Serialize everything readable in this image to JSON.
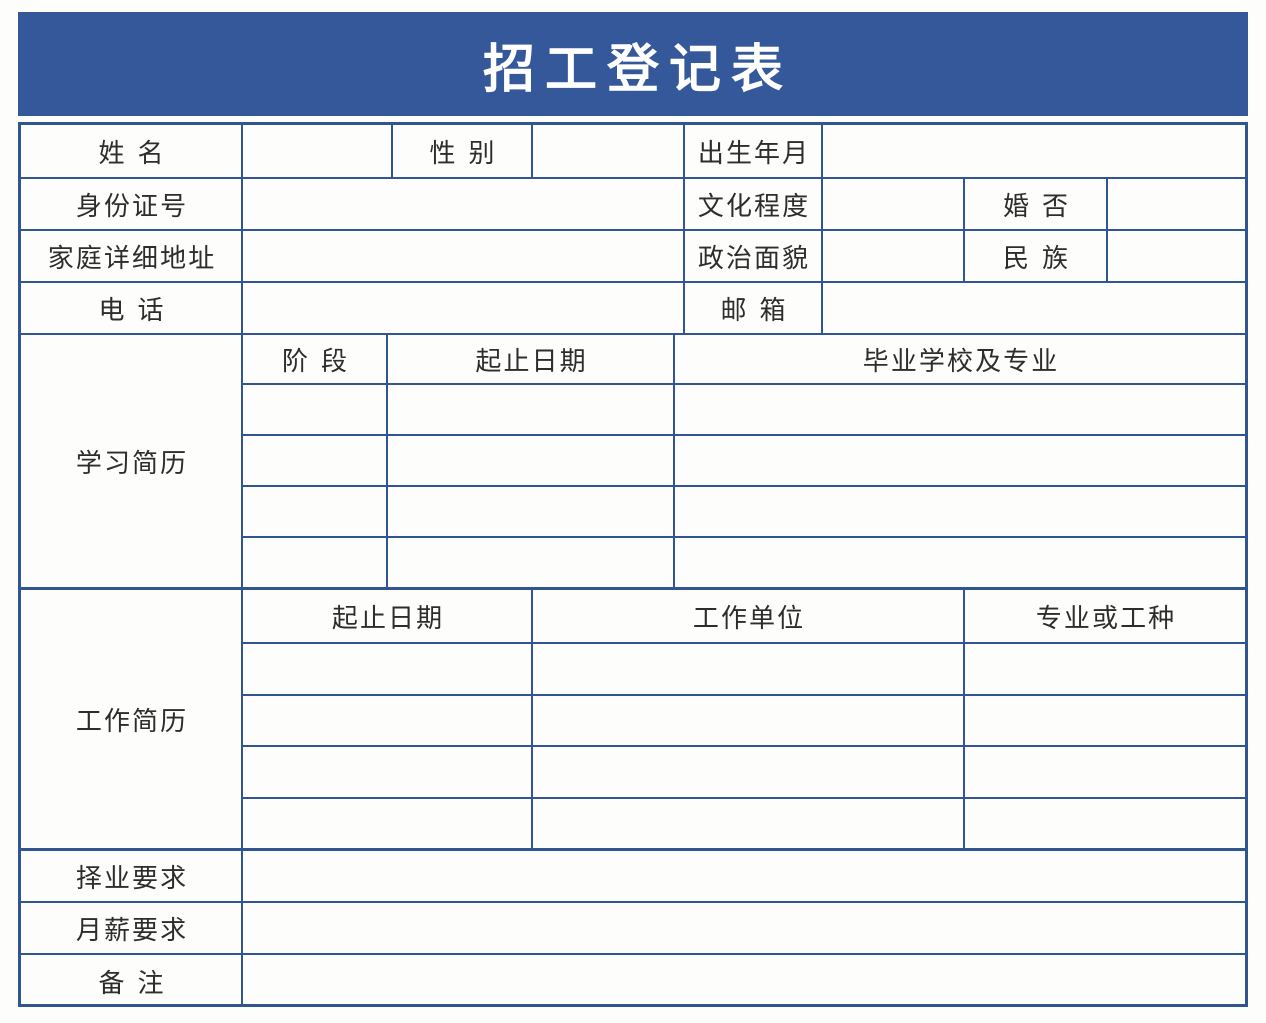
{
  "title": "招工登记表",
  "colors": {
    "header_bg": "#35589B",
    "border": "#315590",
    "label_text": "#2D2D2D",
    "title_text": "#FFFFFF"
  },
  "basic_info": {
    "name_label": "姓名",
    "gender_label": "性别",
    "birth_label": "出生年月",
    "id_label": "身份证号",
    "education_label": "文化程度",
    "marital_label": "婚否",
    "address_label": "家庭详细地址",
    "political_label": "政治面貌",
    "ethnicity_label": "民族",
    "phone_label": "电话",
    "email_label": "邮箱"
  },
  "study_history": {
    "section_label": "学习简历",
    "columns": [
      "阶段",
      "起止日期",
      "毕业学校及专业"
    ],
    "empty_rows": 4
  },
  "work_history": {
    "section_label": "工作简历",
    "columns": [
      "起止日期",
      "工作单位",
      "专业或工种"
    ],
    "empty_rows": 4
  },
  "other": {
    "career_label": "择业要求",
    "salary_label": "月薪要求",
    "remark_label": "备注"
  }
}
